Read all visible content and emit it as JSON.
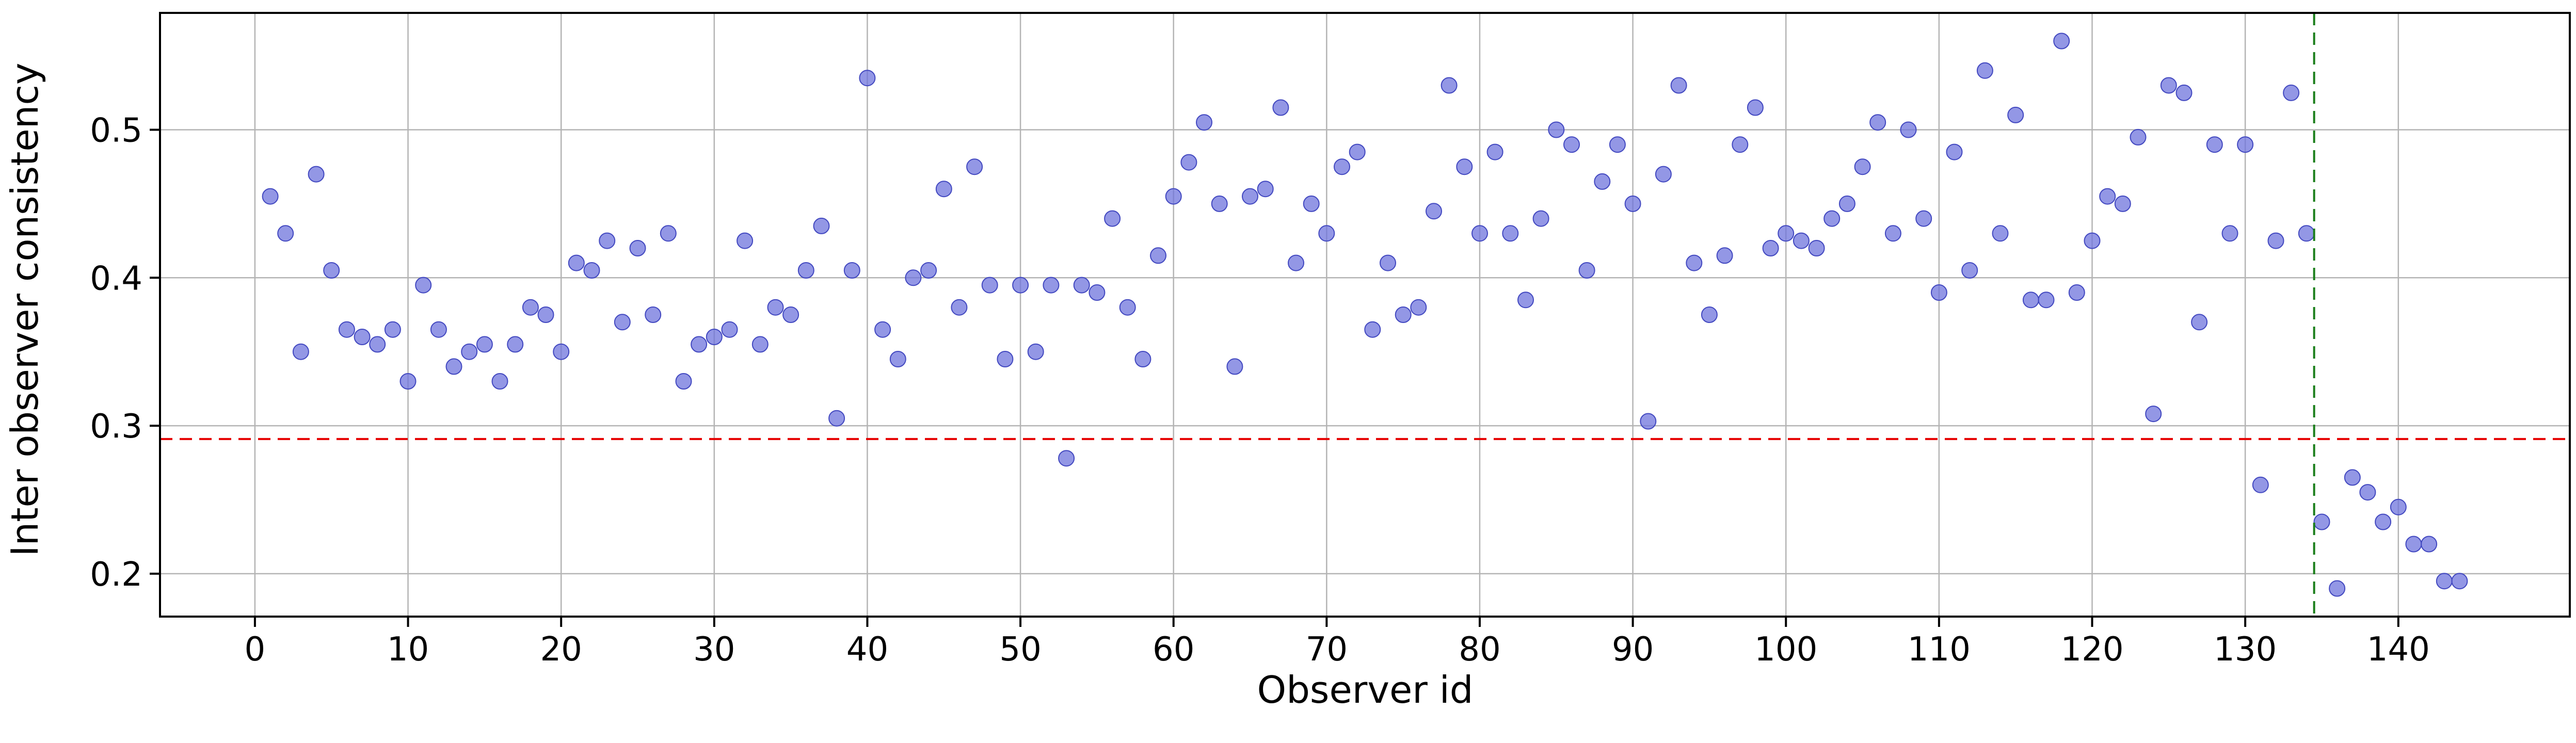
{
  "figure": {
    "background": "#ffffff"
  },
  "chart_data": {
    "type": "scatter",
    "title": "",
    "xlabel": "Observer id",
    "ylabel": "Inter observer consistency",
    "xlim": [
      -6.2,
      151.2
    ],
    "ylim": [
      0.171,
      0.579
    ],
    "xticks": [
      0,
      10,
      20,
      30,
      40,
      50,
      60,
      70,
      80,
      90,
      100,
      110,
      120,
      130,
      140
    ],
    "yticks": [
      0.2,
      0.3,
      0.4,
      0.5
    ],
    "grid": true,
    "legend": "none",
    "x": [
      1,
      2,
      3,
      4,
      5,
      6,
      7,
      8,
      9,
      10,
      11,
      12,
      13,
      14,
      15,
      16,
      17,
      18,
      19,
      20,
      21,
      22,
      23,
      24,
      25,
      26,
      27,
      28,
      29,
      30,
      31,
      32,
      33,
      34,
      35,
      36,
      37,
      38,
      39,
      40,
      41,
      42,
      43,
      44,
      45,
      46,
      47,
      48,
      49,
      50,
      51,
      52,
      53,
      54,
      55,
      56,
      57,
      58,
      59,
      60,
      61,
      62,
      63,
      64,
      65,
      66,
      67,
      68,
      69,
      70,
      71,
      72,
      73,
      74,
      75,
      76,
      77,
      78,
      79,
      80,
      81,
      82,
      83,
      84,
      85,
      86,
      87,
      88,
      89,
      90,
      91,
      92,
      93,
      94,
      95,
      96,
      97,
      98,
      99,
      100,
      101,
      102,
      103,
      104,
      105,
      106,
      107,
      108,
      109,
      110,
      111,
      112,
      113,
      114,
      115,
      116,
      117,
      118,
      119,
      120,
      121,
      122,
      123,
      124,
      125,
      126,
      127,
      128,
      129,
      130,
      131,
      132,
      133,
      134,
      135,
      136,
      137,
      138,
      139,
      140,
      141,
      142,
      143,
      144
    ],
    "y": [
      0.455,
      0.43,
      0.35,
      0.47,
      0.405,
      0.365,
      0.36,
      0.355,
      0.365,
      0.33,
      0.395,
      0.365,
      0.34,
      0.35,
      0.355,
      0.33,
      0.355,
      0.38,
      0.375,
      0.35,
      0.41,
      0.405,
      0.425,
      0.37,
      0.42,
      0.375,
      0.43,
      0.33,
      0.355,
      0.36,
      0.365,
      0.425,
      0.355,
      0.38,
      0.375,
      0.405,
      0.435,
      0.305,
      0.405,
      0.535,
      0.365,
      0.345,
      0.4,
      0.405,
      0.46,
      0.38,
      0.475,
      0.395,
      0.345,
      0.395,
      0.35,
      0.395,
      0.278,
      0.395,
      0.39,
      0.44,
      0.38,
      0.345,
      0.415,
      0.455,
      0.478,
      0.505,
      0.45,
      0.34,
      0.455,
      0.46,
      0.515,
      0.41,
      0.45,
      0.43,
      0.475,
      0.485,
      0.365,
      0.41,
      0.375,
      0.38,
      0.445,
      0.53,
      0.475,
      0.43,
      0.485,
      0.43,
      0.385,
      0.44,
      0.5,
      0.49,
      0.405,
      0.465,
      0.49,
      0.45,
      0.303,
      0.47,
      0.53,
      0.41,
      0.375,
      0.415,
      0.49,
      0.515,
      0.42,
      0.43,
      0.425,
      0.42,
      0.44,
      0.45,
      0.475,
      0.505,
      0.43,
      0.5,
      0.44,
      0.39,
      0.485,
      0.405,
      0.54,
      0.43,
      0.51,
      0.385,
      0.385,
      0.56,
      0.39,
      0.425,
      0.455,
      0.45,
      0.495,
      0.308,
      0.53,
      0.525,
      0.37,
      0.49,
      0.43,
      0.49,
      0.26,
      0.425,
      0.525,
      0.43,
      0.235,
      0.19,
      0.265,
      0.255,
      0.235,
      0.245,
      0.22,
      0.22,
      0.195,
      0.195
    ],
    "threshold_line": {
      "y": 0.291,
      "style": "dashed",
      "color": "#e60000"
    },
    "cutoff_line": {
      "x": 134.5,
      "style": "dashed",
      "color": "#1b7e1b"
    },
    "colors": {
      "marker": "#6f74dc",
      "marker_edge": "#4248c0",
      "grid": "#b4b4b4",
      "spine": "#000000",
      "threshold": "#e60000",
      "cutoff": "#1b7e1b"
    }
  }
}
